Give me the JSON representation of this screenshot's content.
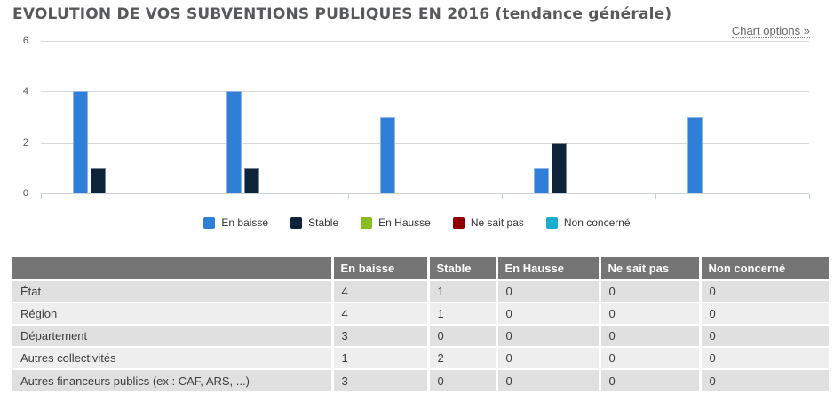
{
  "header": {
    "title": "EVOLUTION DE VOS SUBVENTIONS PUBLIQUES EN 2016 (tendance générale)",
    "chart_options_label": "Chart options »"
  },
  "chart_data": {
    "type": "bar",
    "title": "EVOLUTION DE VOS SUBVENTIONS PUBLIQUES EN 2016 (tendance générale)",
    "categories": [
      "État",
      "Région",
      "Département",
      "Autres collectivités",
      "Autres financeurs publics (ex : CAF, ARS, ...)"
    ],
    "series": [
      {
        "name": "En baisse",
        "color": "#2f7ed8",
        "values": [
          4,
          4,
          3,
          1,
          3
        ]
      },
      {
        "name": "Stable",
        "color": "#0d233a",
        "values": [
          1,
          1,
          0,
          2,
          0
        ]
      },
      {
        "name": "En Hausse",
        "color": "#8bbc21",
        "values": [
          0,
          0,
          0,
          0,
          0
        ]
      },
      {
        "name": "Ne sait pas",
        "color": "#910000",
        "values": [
          0,
          0,
          0,
          0,
          0
        ]
      },
      {
        "name": "Non concerné",
        "color": "#1aadce",
        "values": [
          0,
          0,
          0,
          0,
          0
        ]
      }
    ],
    "xlabel": "",
    "ylabel": "",
    "ylim": [
      0,
      6
    ],
    "yticks": [
      0,
      2,
      4,
      6
    ],
    "grid": true,
    "legend_position": "bottom",
    "x_tick_labels_shown": false
  },
  "table": {
    "columns": [
      "",
      "En baisse",
      "Stable",
      "En Hausse",
      "Ne sait pas",
      "Non concerné"
    ],
    "rows": [
      {
        "label": "État",
        "values": [
          "4",
          "1",
          "0",
          "0",
          "0"
        ]
      },
      {
        "label": "Région",
        "values": [
          "4",
          "1",
          "0",
          "0",
          "0"
        ]
      },
      {
        "label": "Département",
        "values": [
          "3",
          "0",
          "0",
          "0",
          "0"
        ]
      },
      {
        "label": "Autres collectivités",
        "values": [
          "1",
          "2",
          "0",
          "0",
          "0"
        ]
      },
      {
        "label": "Autres financeurs publics (ex : CAF, ARS, ...)",
        "values": [
          "3",
          "0",
          "0",
          "0",
          "0"
        ]
      }
    ]
  },
  "colors": {
    "title_text": "#58595b",
    "grid_line": "#d8d8d8",
    "axis_line": "#c0d0e0",
    "table_header_bg": "#757575",
    "table_row_odd_bg": "#e0e0e0",
    "table_row_even_bg": "#eeeeee"
  }
}
